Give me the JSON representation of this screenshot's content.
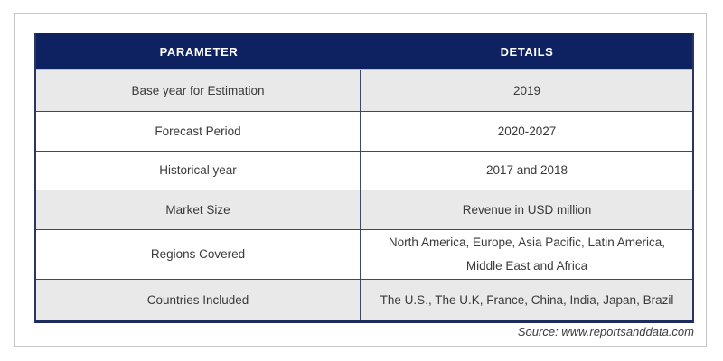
{
  "chart_data": {
    "type": "table",
    "columns": [
      "PARAMETER",
      "DETAILS"
    ],
    "rows": [
      {
        "parameter": "Base year for Estimation",
        "details": "2019"
      },
      {
        "parameter": "Forecast Period",
        "details": "2020-2027"
      },
      {
        "parameter": "Historical year",
        "details": "2017 and 2018"
      },
      {
        "parameter": "Market Size",
        "details": "Revenue in USD million"
      },
      {
        "parameter": "Regions Covered",
        "details": "North America, Europe, Asia Pacific, Latin America, Middle East and Africa"
      },
      {
        "parameter": "Countries Included",
        "details": "The U.S., The  U.K, France, China, India, Japan, Brazil"
      }
    ],
    "legend": "none",
    "grid": "table borders only"
  },
  "source": {
    "label": "Source: www.reportsanddata.com"
  },
  "colors": {
    "header_bg": "#0e2262",
    "header_text": "#ffffff",
    "row_shaded_bg": "#e9e9e9",
    "row_plain_bg": "#ffffff",
    "row_border": "#3c4864",
    "table_outer_border": "#2a3765",
    "frame_border": "#c6c6c6",
    "cell_text": "#3a3a3a",
    "source_text": "#3c3c3c"
  }
}
